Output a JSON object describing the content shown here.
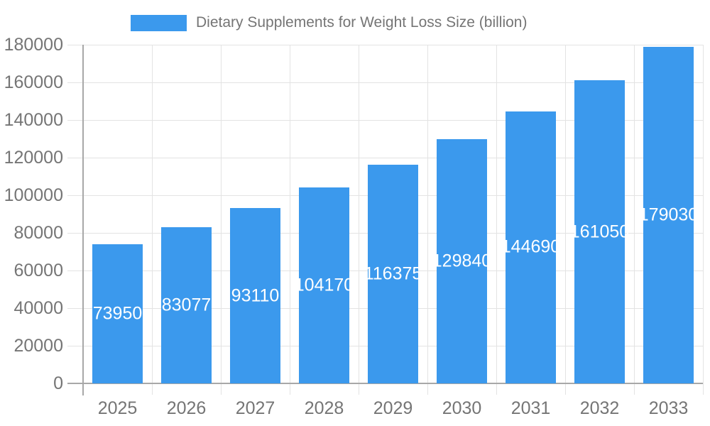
{
  "legend": {
    "label": "Dietary Supplements for Weight Loss Size (billion)"
  },
  "chart_data": {
    "type": "bar",
    "title": "Dietary Supplements for Weight Loss Size (billion)",
    "categories": [
      "2025",
      "2026",
      "2027",
      "2028",
      "2029",
      "2030",
      "2031",
      "2032",
      "2033"
    ],
    "series": [
      {
        "name": "Dietary Supplements for Weight Loss Size (billion)",
        "values": [
          73950,
          83077,
          93110,
          104170,
          116375,
          129840,
          144690,
          161050,
          179030
        ]
      }
    ],
    "value_labels": [
      "73950",
      "83077",
      "93110",
      "104170",
      "116375",
      "129840",
      "144690",
      "161050",
      "179030"
    ],
    "xlabel": "",
    "ylabel": "",
    "ylim": [
      0,
      180000
    ],
    "yticks": [
      0,
      20000,
      40000,
      60000,
      80000,
      100000,
      120000,
      140000,
      160000,
      180000
    ],
    "ytick_labels": [
      "0",
      "20000",
      "40000",
      "60000",
      "80000",
      "100000",
      "120000",
      "140000",
      "160000",
      "180000"
    ],
    "grid": true,
    "legend_position": "top"
  },
  "colors": {
    "bar": "#3b99ed",
    "grid_line": "#e3e3e3",
    "axis_line": "#a8a8a8",
    "tick": "#d9d9d9",
    "axis_text": "#757575",
    "value_text": "#ffffff",
    "background": "#ffffff"
  }
}
